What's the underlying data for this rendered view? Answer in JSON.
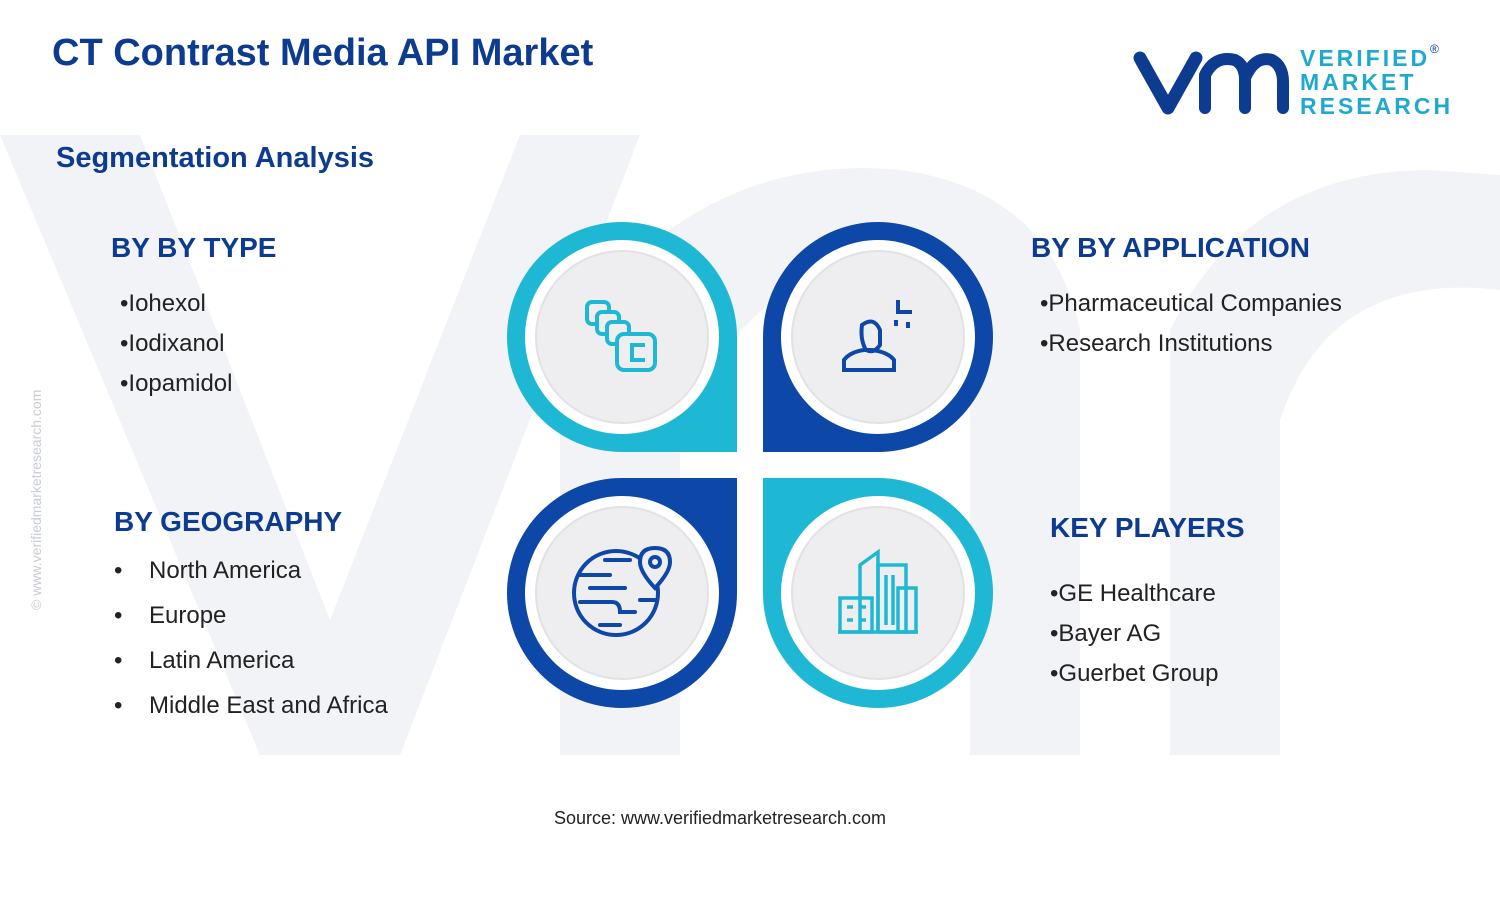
{
  "header": {
    "title": "CT Contrast Media API Market",
    "subtitle": "Segmentation Analysis"
  },
  "logo": {
    "lines": [
      "VERIFIED",
      "MARKET",
      "RESEARCH"
    ],
    "mark": "®"
  },
  "watermark": "© www.verifiedmarketresearch.com",
  "segments": [
    {
      "heading": "BY BY TYPE",
      "items": [
        "Iohexol",
        "Iodixanol",
        "Iopamidol"
      ]
    },
    {
      "heading": "BY BY APPLICATION",
      "items": [
        "Pharmaceutical Companies",
        "Research Institutions"
      ]
    },
    {
      "heading": "BY GEOGRAPHY",
      "items": [
        "North America",
        "Europe",
        "Latin America",
        "Middle East and Africa"
      ]
    },
    {
      "heading": "KEY PLAYERS",
      "items": [
        "GE Healthcare",
        "Bayer AG",
        "Guerbet Group"
      ]
    }
  ],
  "source": "Source: www.verifiedmarketresearch.com"
}
